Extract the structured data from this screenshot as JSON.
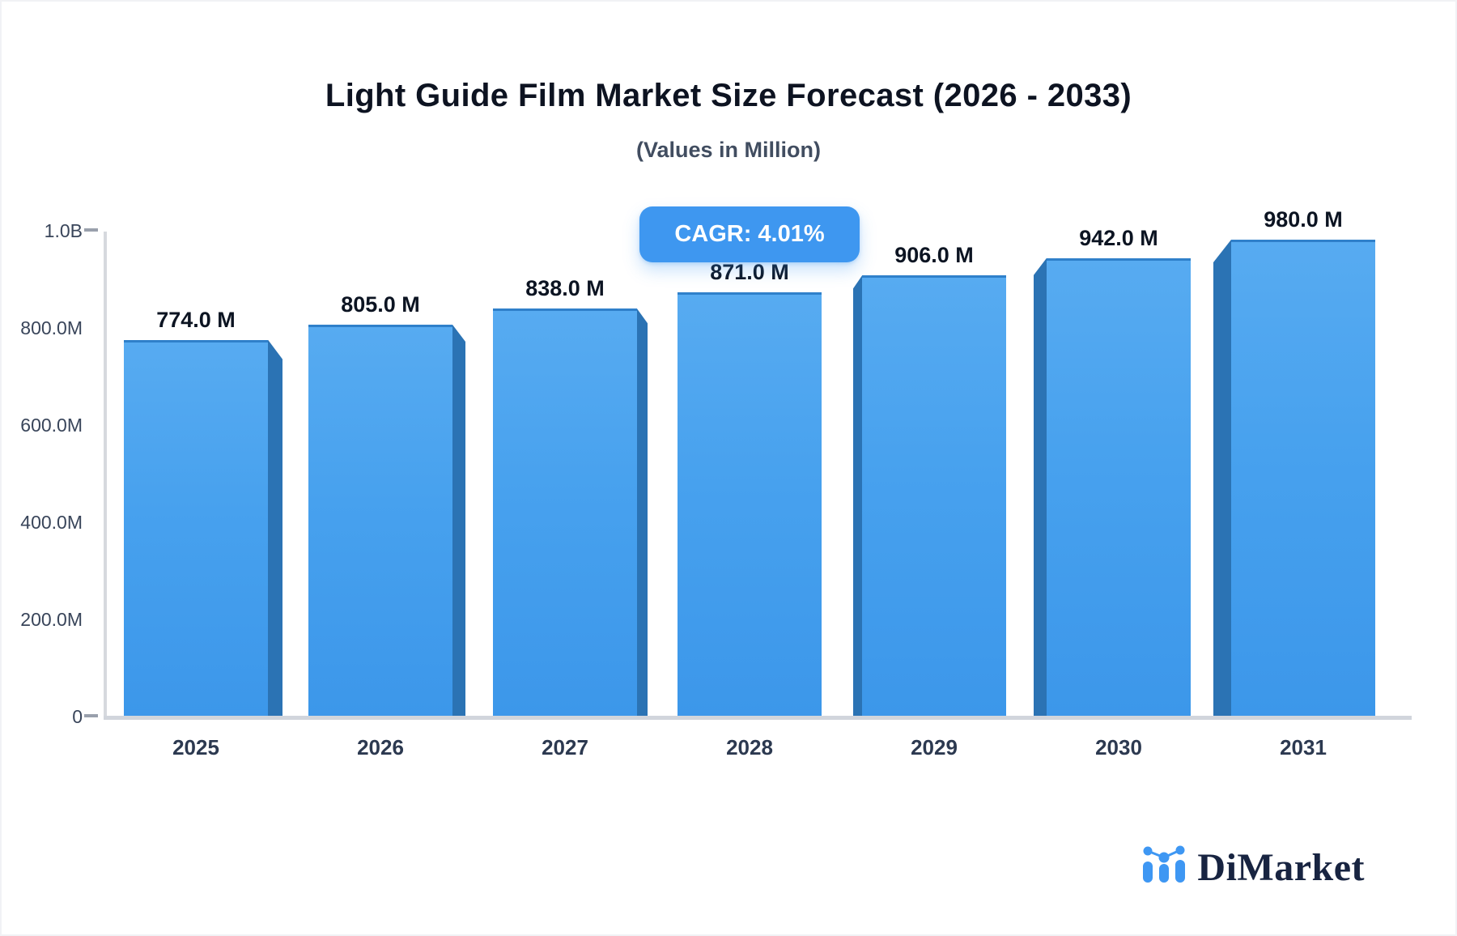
{
  "title": "Light Guide Film Market Size Forecast (2026 - 2033)",
  "subtitle": "(Values in Million)",
  "cagr_badge": "CAGR: 4.01%",
  "logo": {
    "brand": "DiMarket",
    "icon": "bar-chart-logo-icon"
  },
  "colors": {
    "bar_face": "#47a1ee",
    "bar_side": "#2b73b4",
    "badge_background": "#3e97f0",
    "axis_line": "#d3d6dc",
    "logo_blue": "#3e97f3",
    "logo_text": "#182441"
  },
  "chart_data": {
    "type": "bar",
    "title": "Light Guide Film Market Size Forecast (2026 - 2033)",
    "subtitle": "(Values in Million)",
    "annotation": "CAGR: 4.01%",
    "categories": [
      "2025",
      "2026",
      "2027",
      "2028",
      "2029",
      "2030",
      "2031"
    ],
    "values": [
      774,
      805,
      838,
      871,
      906,
      942,
      980
    ],
    "bar_labels": [
      "774.0 M",
      "805.0 M",
      "838.0 M",
      "871.0 M",
      "906.0 M",
      "942.0 M",
      "980.0 M"
    ],
    "y_ticks": [
      {
        "label": "1.0B",
        "value": 1000
      },
      {
        "label": "800.0M",
        "value": 800
      },
      {
        "label": "600.0M",
        "value": 600
      },
      {
        "label": "400.0M",
        "value": 400
      },
      {
        "label": "200.0M",
        "value": 200
      },
      {
        "label": "0",
        "value": 0
      }
    ],
    "ylim": [
      0,
      1000
    ],
    "grid": false,
    "legend": false,
    "xlabel": "",
    "ylabel": ""
  }
}
